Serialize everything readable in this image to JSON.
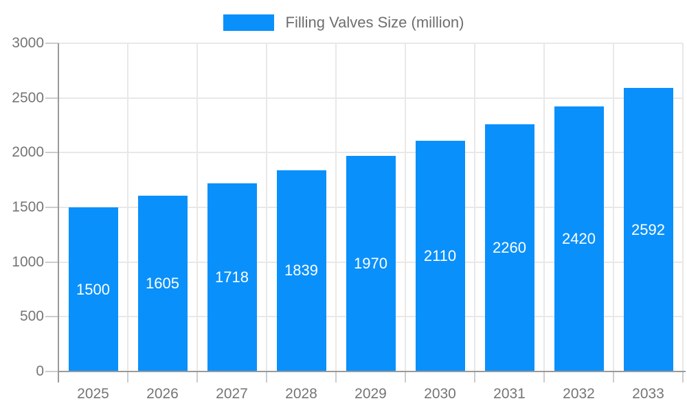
{
  "chart_data": {
    "type": "bar",
    "title": "",
    "xlabel": "",
    "ylabel": "",
    "legend_label": "Filling Valves Size (million)",
    "legend_position": "top",
    "grid": true,
    "data_labels": true,
    "categories": [
      "2025",
      "2026",
      "2027",
      "2028",
      "2029",
      "2030",
      "2031",
      "2032",
      "2033"
    ],
    "series": [
      {
        "name": "Filling Valves Size (million)",
        "values": [
          1500,
          1605,
          1718,
          1839,
          1970,
          2110,
          2260,
          2420,
          2592
        ]
      }
    ],
    "ylim": [
      0,
      3000
    ],
    "y_ticks": [
      0,
      500,
      1000,
      1500,
      2000,
      2500,
      3000
    ],
    "colors": {
      "bar": "#0a90fb",
      "bar_label": "#ffffff",
      "axis_text": "#757575",
      "legend_text": "#6e6e6e",
      "gridline": "#e8e8e8",
      "axis_line": "#999999",
      "tick": "#cccccc"
    }
  }
}
